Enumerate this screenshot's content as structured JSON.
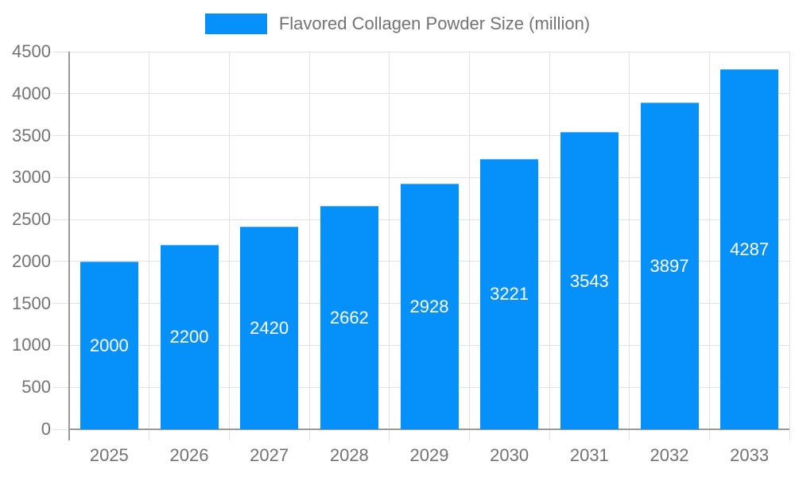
{
  "legend": {
    "series_label": "Flavored Collagen Powder Size (million)",
    "swatch_color": "#0691fa"
  },
  "chart_data": {
    "type": "bar",
    "title": "Flavored Collagen Powder Size (million)",
    "categories": [
      "2025",
      "2026",
      "2027",
      "2028",
      "2029",
      "2030",
      "2031",
      "2032",
      "2033"
    ],
    "values": [
      2000,
      2200,
      2420,
      2662,
      2928,
      3221,
      3543,
      3897,
      4287
    ],
    "xlabel": "",
    "ylabel": "",
    "ylim": [
      0,
      4500
    ],
    "y_tick_interval": 500,
    "y_tick_labels": [
      "0",
      "500",
      "1000",
      "1500",
      "2000",
      "2500",
      "3000",
      "3500",
      "4000",
      "4500"
    ],
    "grid": true,
    "legend_position": "top-center",
    "value_label_position": "inside-center",
    "colors": {
      "bar": "#0691fa",
      "bar_edge": "#5db4f7",
      "grid_line": "#e2e2e2",
      "axis_line": "#999999",
      "tick_text": "#737373",
      "value_label_text": "#ffffff",
      "background": "#ffffff"
    }
  }
}
